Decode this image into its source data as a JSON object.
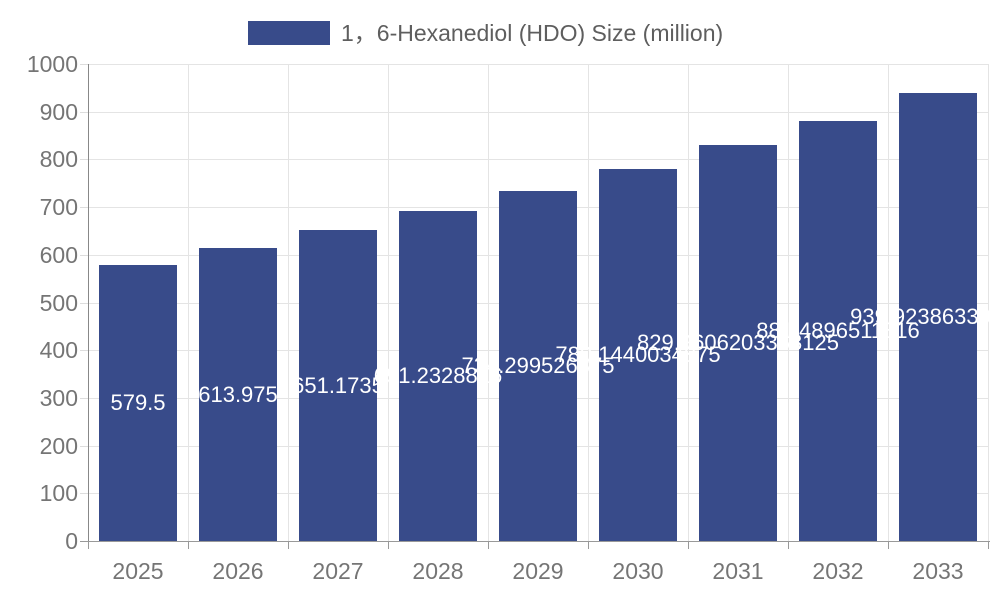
{
  "legend": {
    "label": "1，6-Hexanediol (HDO) Size (million)"
  },
  "chart_data": {
    "type": "bar",
    "title": "1，6-Hexanediol (HDO) Size (million)",
    "xlabel": "",
    "ylabel": "",
    "categories": [
      "2025",
      "2026",
      "2027",
      "2028",
      "2029",
      "2030",
      "2031",
      "2032",
      "2033"
    ],
    "values": [
      579.5,
      613.975,
      651.1735,
      691.2328816,
      734.299526875,
      780.1440034875,
      829.9606203353125,
      881.4896511316,
      939.92386339116
    ],
    "value_labels": [
      "579.5",
      "613.975",
      "651.1735",
      "691.2328816",
      "734.299526875",
      "780.1440034875",
      "829.9606203353125",
      "881.4896511316",
      "939.92386339116"
    ],
    "series_name": "1，6-Hexanediol (HDO) Size (million)",
    "ylim": [
      0,
      1000
    ],
    "yticks": [
      0,
      100,
      200,
      300,
      400,
      500,
      600,
      700,
      800,
      900,
      1000
    ],
    "grid": true,
    "legend_position": "top",
    "label_position": "inside-middle",
    "colors": {
      "bar": "#384B8A",
      "bar_label_text": "#ffffff",
      "gridline": "#e4e4e4",
      "axis_line": "#888888",
      "tick": "#999999",
      "axis_text": "#757575",
      "legend_text": "#5e5e5e",
      "background": "#ffffff"
    }
  }
}
